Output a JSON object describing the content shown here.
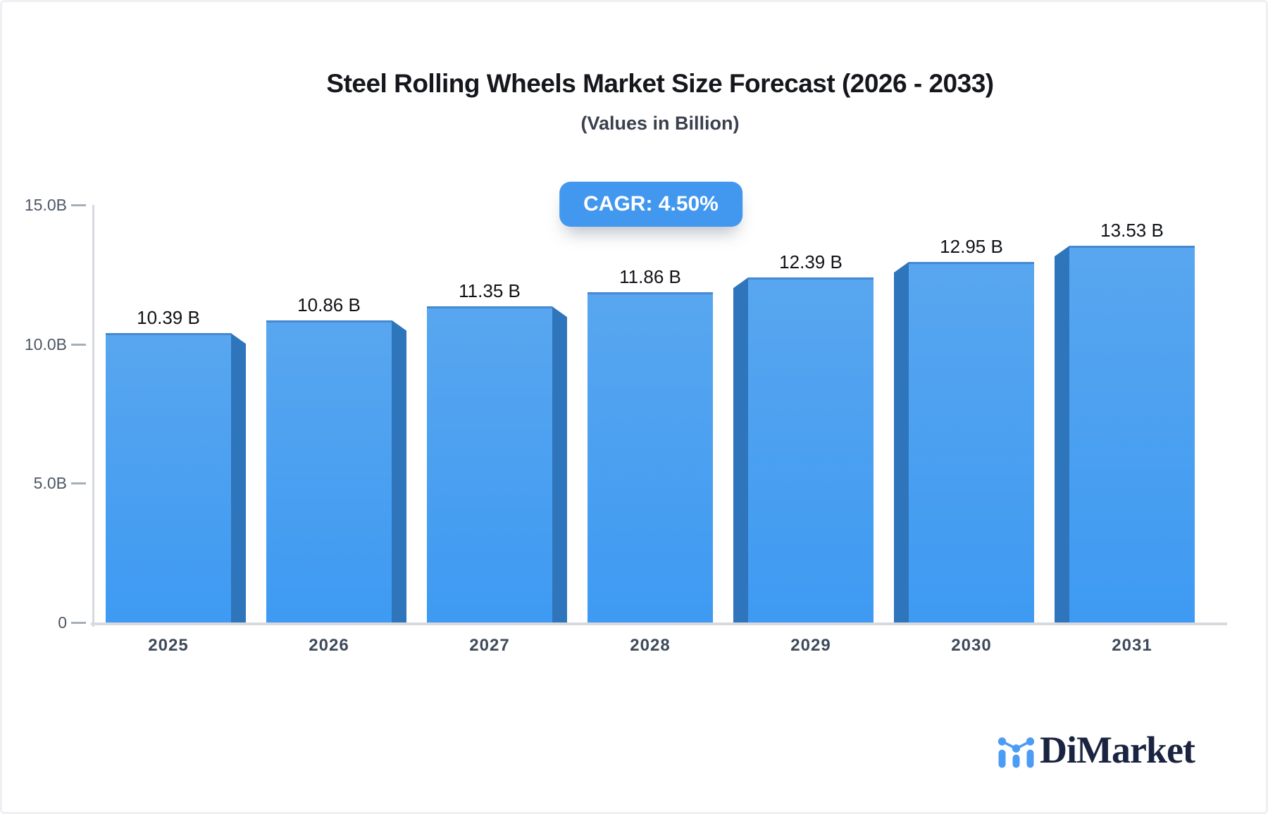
{
  "header": {
    "title": "Steel Rolling Wheels Market Size Forecast (2026 - 2033)",
    "subtitle": "(Values in Billion)"
  },
  "badge": {
    "label": "CAGR: 4.50%"
  },
  "chart_data": {
    "type": "bar",
    "title": "Steel Rolling Wheels Market Size Forecast (2026 - 2033)",
    "subtitle": "(Values in Billion)",
    "categories": [
      "2025",
      "2026",
      "2027",
      "2028",
      "2029",
      "2030",
      "2031"
    ],
    "values": [
      10.39,
      10.86,
      11.35,
      11.86,
      12.39,
      12.95,
      13.53
    ],
    "bar_labels": [
      "10.39 B",
      "10.86 B",
      "11.35 B",
      "11.86 B",
      "12.39 B",
      "12.95 B",
      "13.53 B"
    ],
    "annotation": "CAGR: 4.50%",
    "xlabel": "",
    "ylabel": "",
    "ylim": [
      0,
      15
    ],
    "y_ticks": [
      {
        "label": "15.0B",
        "value": 15
      },
      {
        "label": "10.0B",
        "value": 10
      },
      {
        "label": "5.0B",
        "value": 5
      },
      {
        "label": "0",
        "value": 0
      }
    ],
    "grid": false,
    "legend": false,
    "bar_style": "pseudo-3d",
    "bar_color_top": "#58A6EF",
    "bar_color_bottom": "#3E9AF2",
    "bar_side_color": "#2E75BC"
  },
  "logo": {
    "text": "DiMarket",
    "icon": "bar-line-chart-icon",
    "icon_color": "#4B9CF5",
    "text_color": "#1A2440"
  },
  "colors": {
    "background": "#FFFFFF",
    "frame_border": "#EEF0F3",
    "badge_bg": "#4297EE",
    "badge_text": "#FFFFFF",
    "axis_line": "#D6D9DE",
    "tick": "#A7AEB8",
    "y_label": "#4D5766",
    "x_label": "#3E4A5A",
    "value_label": "#101216",
    "title": "#15171C",
    "subtitle": "#3A414E"
  }
}
